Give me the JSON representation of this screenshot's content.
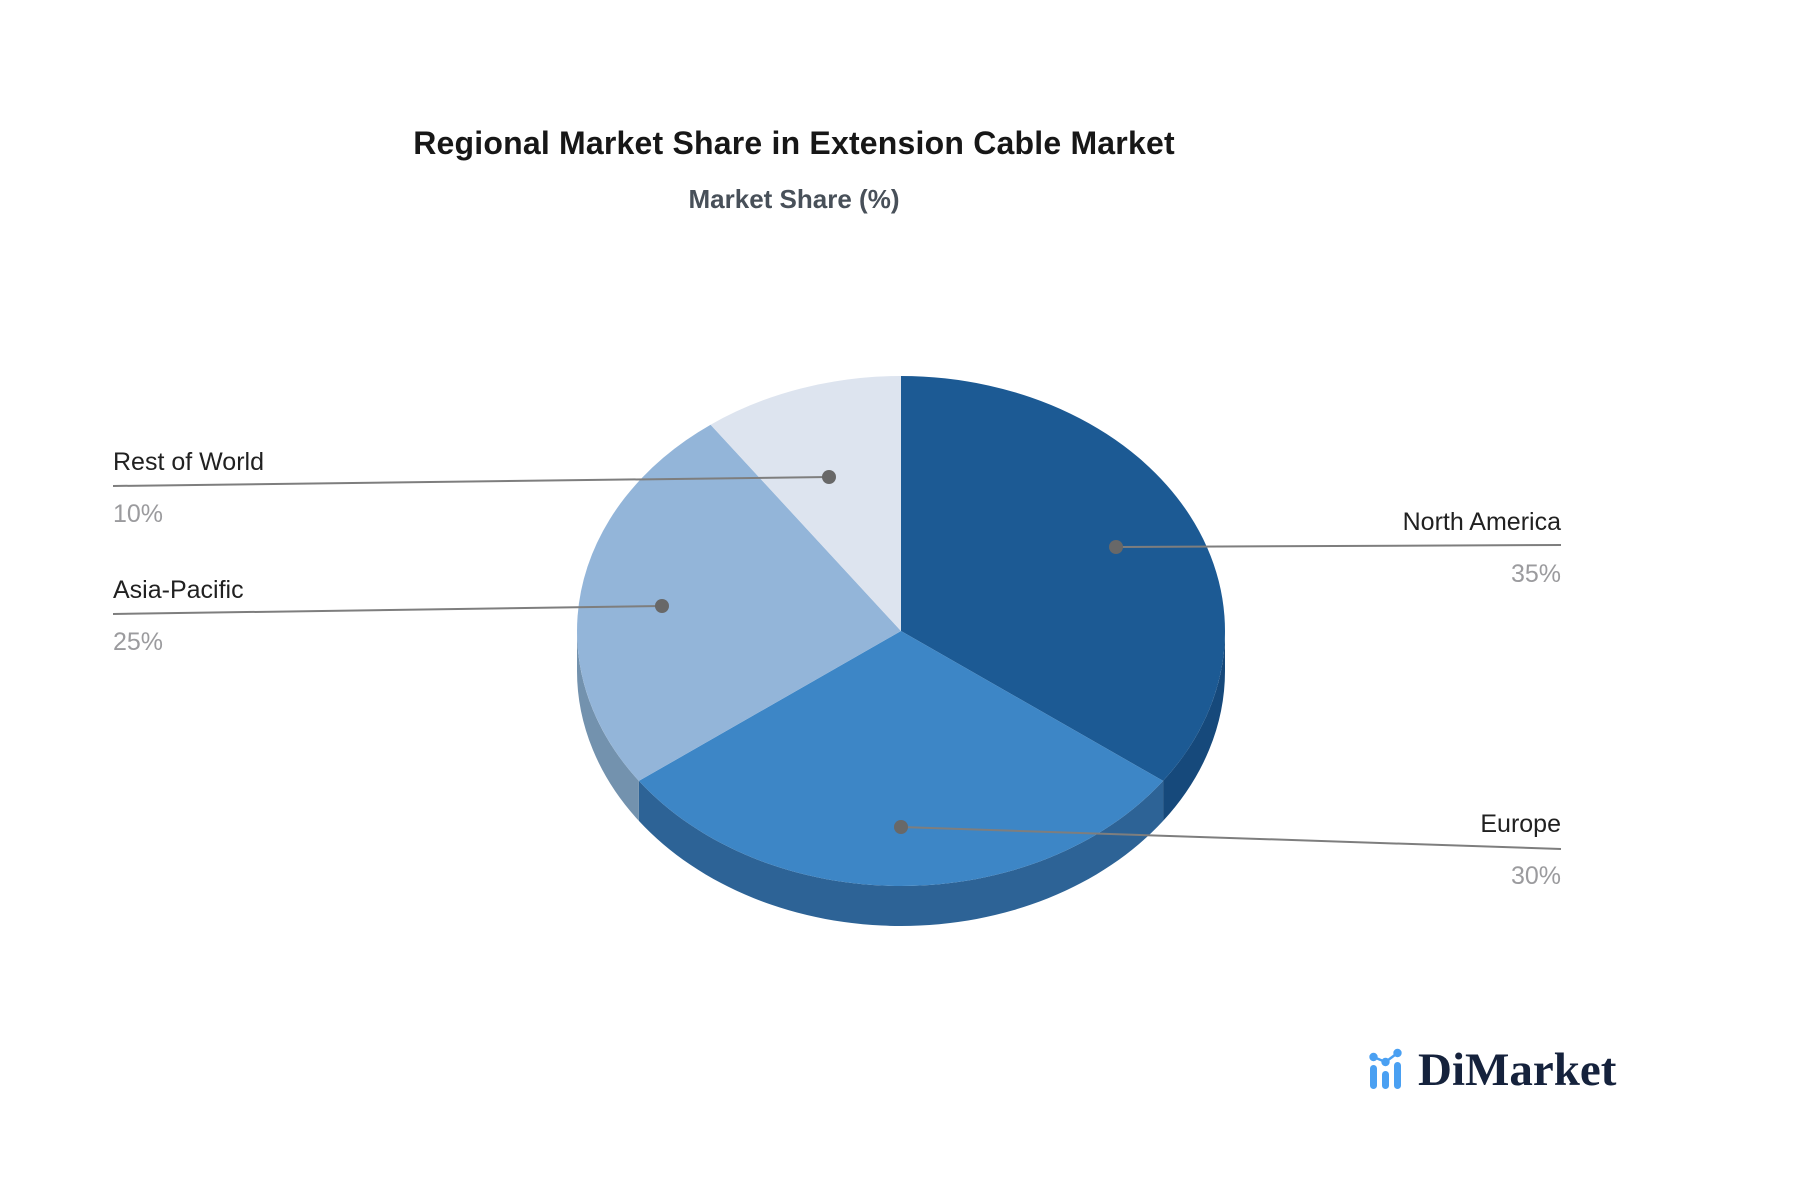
{
  "header": {
    "title": "Regional Market Share in Extension Cable Market",
    "subtitle": "Market Share (%)"
  },
  "chart_data": {
    "type": "pie",
    "title": "Regional Market Share in Extension Cable Market",
    "subtitle": "Market Share (%)",
    "unit": "%",
    "effect": "3d",
    "start_angle_deg": 0,
    "direction": "clockwise",
    "legend_position": "callout-labels",
    "slices": [
      {
        "label": "North America",
        "value": 35,
        "pct_label": "35%",
        "color": "#1c5a94",
        "side_color": "#16497b"
      },
      {
        "label": "Europe",
        "value": 30,
        "pct_label": "30%",
        "color": "#3d86c6",
        "side_color": "#2d6396"
      },
      {
        "label": "Asia-Pacific",
        "value": 25,
        "pct_label": "25%",
        "color": "#93b5d9",
        "side_color": "#7392ae"
      },
      {
        "label": "Rest of World",
        "value": 10,
        "pct_label": "10%",
        "color": "#dde4ef",
        "side_color": "#b9c5d8"
      }
    ]
  },
  "logo": {
    "text": "DiMarket",
    "icon": "bar-chart-trend-icon",
    "accent_color": "#4aa0f2",
    "text_color": "#15223c"
  },
  "style": {
    "title_color": "#171717",
    "subtitle_color": "#485059",
    "label_color": "#212121",
    "pct_color": "#9b9b9e",
    "line_color": "#7e7e7e",
    "dot_color": "#686868",
    "background": "#ffffff"
  }
}
